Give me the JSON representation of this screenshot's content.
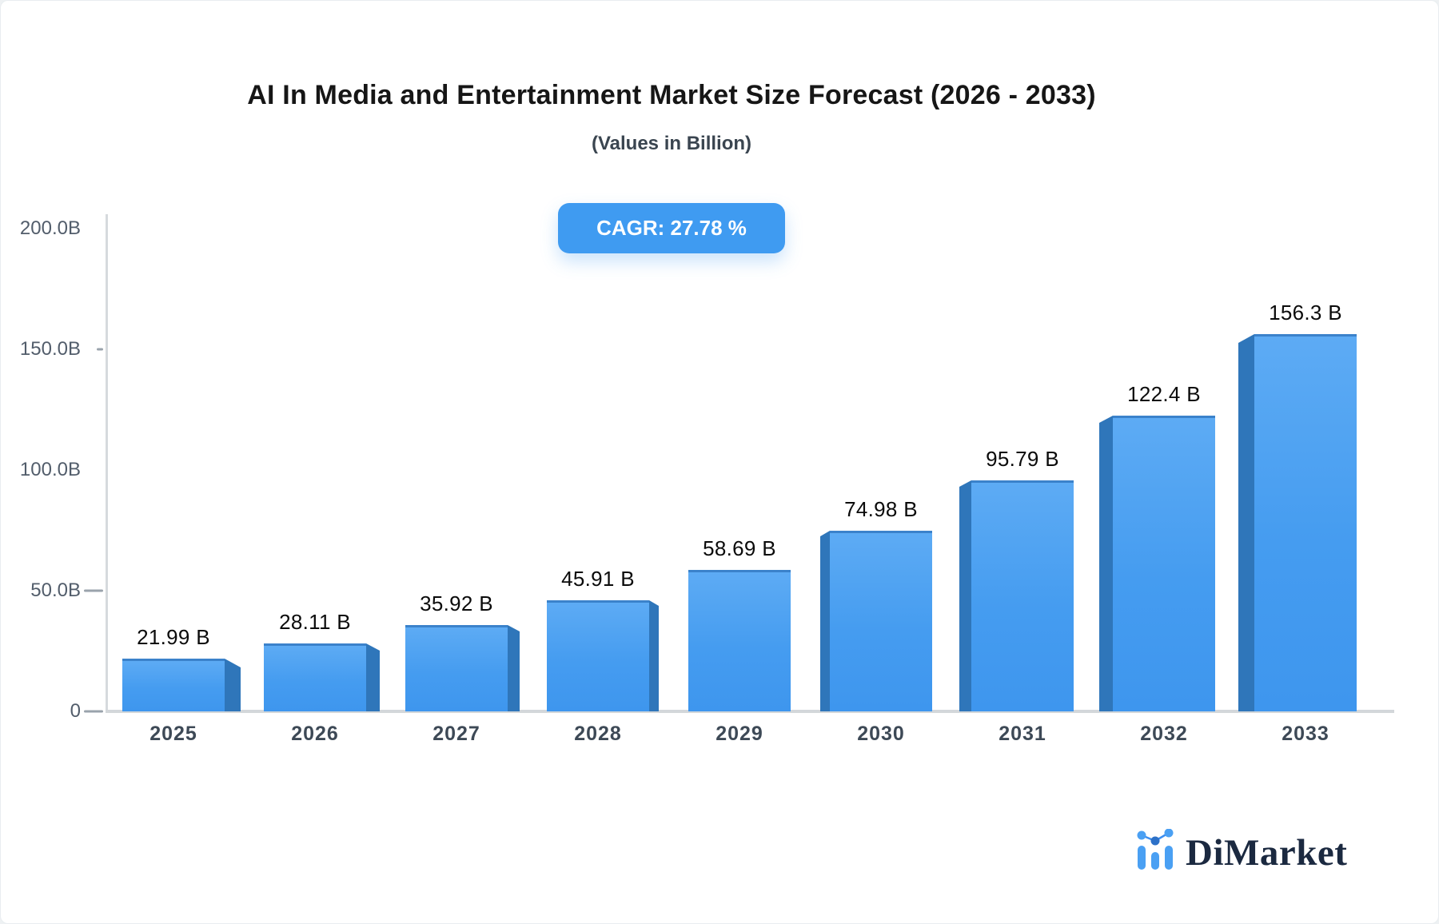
{
  "header": {
    "title": "AI In Media and Entertainment Market Size Forecast (2026 - 2033)",
    "subtitle": "(Values in Billion)"
  },
  "badge": {
    "label": "CAGR: 27.78 %"
  },
  "brand": {
    "name": "DiMarket"
  },
  "chart_data": {
    "type": "bar",
    "title": "AI In Media and Entertainment Market Size Forecast (2026 - 2033)",
    "subtitle": "(Values in Billion)",
    "cagr_percent": 27.78,
    "categories": [
      "2025",
      "2026",
      "2027",
      "2028",
      "2029",
      "2030",
      "2031",
      "2032",
      "2033"
    ],
    "values": [
      21.99,
      28.11,
      35.92,
      45.91,
      58.69,
      74.98,
      95.79,
      122.4,
      156.3
    ],
    "bar_labels": [
      "21.99 B",
      "28.11 B",
      "35.92 B",
      "45.91 B",
      "58.69 B",
      "74.98 B",
      "95.79 B",
      "122.4 B",
      "156.3 B"
    ],
    "unit": "Billion USD",
    "xlabel": "",
    "ylabel": "",
    "ylim": [
      0,
      200
    ],
    "grid": false,
    "legend": false,
    "y_ticks": [
      {
        "value": 200,
        "label": "200.0B"
      },
      {
        "value": 150,
        "label": "150.0B"
      },
      {
        "value": 100,
        "label": "100.0B"
      },
      {
        "value": 50,
        "label": "50.0B"
      },
      {
        "value": 0,
        "label": "0"
      }
    ],
    "colors": {
      "bar_face_top": "#5dabf4",
      "bar_face_bottom": "#3e96ee",
      "bar_top_edge": "#3b82cb",
      "bar_side": "#2f76ba",
      "axis_line": "#d6dadd",
      "tick_dash": "#9aa3ac",
      "y_label": "#525d6b",
      "x_label": "#3d4956",
      "value_label": "#0b0b0b",
      "badge_bg": "#3f9bf1",
      "badge_text": "#ffffff",
      "brand_text": "#1b2940",
      "brand_icon_blue": "#4aa0f3",
      "brand_icon_dark": "#2d71c8"
    }
  }
}
